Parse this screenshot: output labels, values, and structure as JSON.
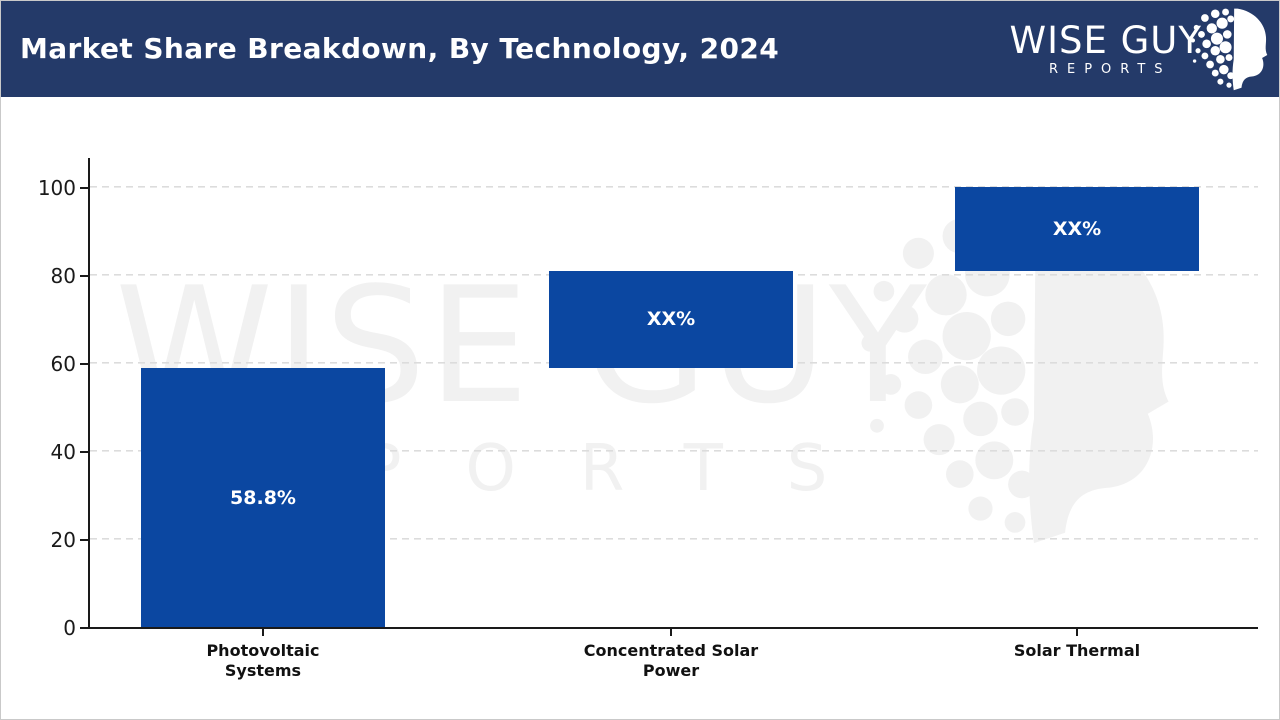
{
  "header": {
    "title": "Market Share Breakdown, By Technology, 2024",
    "background_color": "#243a69",
    "logo": {
      "name": "WISE GUY",
      "tagline": "REPORTS"
    }
  },
  "watermark": {
    "line1": "WISE GUY",
    "line2": "REPORTS"
  },
  "chart_data": {
    "type": "bar",
    "variant": "waterfall_breakdown",
    "title": "Market Share Breakdown, By Technology, 2024",
    "categories": [
      "Photovoltaic Systems",
      "Concentrated Solar Power",
      "Solar Thermal"
    ],
    "bars": [
      {
        "category": "Photovoltaic Systems",
        "category_lines": [
          "Photovoltaic",
          "Systems"
        ],
        "start": 0,
        "end": 58.8,
        "label": "58.8%"
      },
      {
        "category": "Concentrated Solar Power",
        "category_lines": [
          "Concentrated Solar",
          "Power"
        ],
        "start": 58.8,
        "end": 81,
        "label": "XX%"
      },
      {
        "category": "Solar Thermal",
        "category_lines": [
          "Solar Thermal"
        ],
        "start": 81,
        "end": 100,
        "label": "XX%"
      }
    ],
    "yticks": [
      0,
      20,
      40,
      60,
      80,
      100
    ],
    "ylim": [
      0,
      106.5
    ],
    "xlabel": "",
    "ylabel": "",
    "bar_color": "#0b47a1",
    "bar_label_color": "#ffffff",
    "grid": {
      "horizontal": true,
      "style": "dashed",
      "color": "#dcdcdc"
    },
    "legend": "none"
  }
}
